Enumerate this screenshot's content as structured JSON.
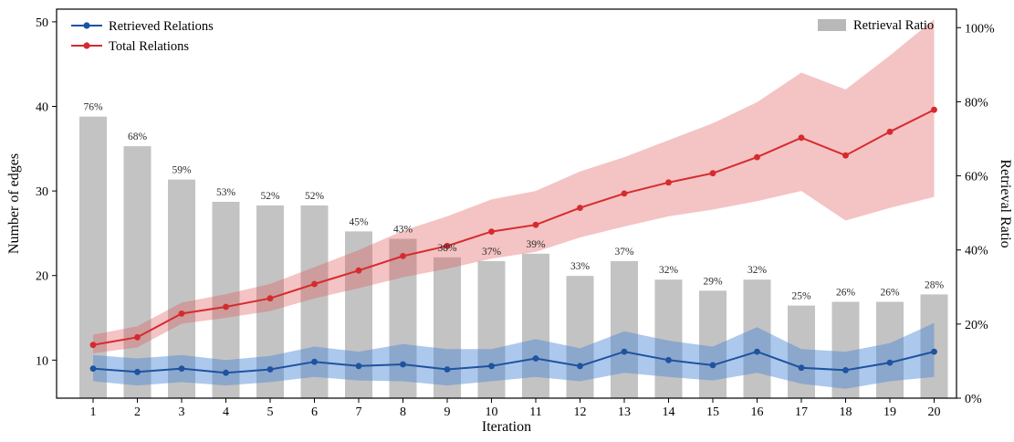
{
  "page": {
    "background": "#ffffff"
  },
  "chart_data": {
    "type": "bar+line",
    "title": "",
    "xlabel": "Iteration",
    "ylabel_left": "Number of edges",
    "ylabel_right": "Retrieval Ratio",
    "x": [
      1,
      2,
      3,
      4,
      5,
      6,
      7,
      8,
      9,
      10,
      11,
      12,
      13,
      14,
      15,
      16,
      17,
      18,
      19,
      20
    ],
    "left_ticks": [
      10,
      20,
      30,
      40,
      50
    ],
    "left_ylim": [
      5.5,
      51.5
    ],
    "right_ticks": [
      0,
      20,
      40,
      60,
      80,
      100
    ],
    "right_tick_labels": [
      "0%",
      "20%",
      "40%",
      "60%",
      "80%",
      "100%"
    ],
    "right_ylim": [
      0,
      105
    ],
    "grid": false,
    "legend_position": "top-left and top-right, no frame",
    "bars": {
      "name": "Retrieval Ratio",
      "axis": "right",
      "color": "#b8b8b8",
      "values_pct": [
        76,
        68,
        59,
        53,
        52,
        52,
        45,
        43,
        38,
        37,
        39,
        33,
        37,
        32,
        29,
        32,
        25,
        26,
        26,
        28
      ],
      "labels": [
        "76%",
        "68%",
        "59%",
        "53%",
        "52%",
        "52%",
        "45%",
        "43%",
        "38%",
        "37%",
        "39%",
        "33%",
        "37%",
        "32%",
        "29%",
        "32%",
        "25%",
        "26%",
        "26%",
        "28%"
      ],
      "label_color": "#2b2b2b"
    },
    "lines": [
      {
        "name": "Retrieved Relations",
        "axis": "left",
        "color": "#1d53a0",
        "band_color": "#4a86d8",
        "band_opacity": 0.45,
        "values": [
          9.0,
          8.6,
          9.0,
          8.5,
          8.9,
          9.8,
          9.3,
          9.5,
          8.9,
          9.3,
          10.2,
          9.3,
          11.0,
          10.0,
          9.4,
          11.0,
          9.1,
          8.8,
          9.7,
          11.0
        ],
        "band_upper": [
          10.6,
          10.2,
          10.6,
          10.0,
          10.5,
          11.6,
          11.0,
          11.9,
          11.3,
          11.3,
          12.5,
          11.4,
          13.4,
          12.3,
          11.6,
          13.9,
          11.3,
          11.0,
          12.0,
          14.4
        ],
        "band_lower": [
          7.5,
          7.0,
          7.4,
          7.0,
          7.4,
          8.0,
          7.6,
          7.5,
          7.0,
          7.5,
          8.0,
          7.5,
          8.5,
          8.0,
          7.6,
          8.5,
          7.2,
          6.6,
          7.5,
          8.0
        ]
      },
      {
        "name": "Total Relations",
        "axis": "left",
        "color": "#d62b2e",
        "band_color": "#e05252",
        "band_opacity": 0.35,
        "values": [
          11.8,
          12.7,
          15.5,
          16.3,
          17.3,
          19.0,
          20.6,
          22.3,
          23.5,
          25.2,
          26.0,
          28.0,
          29.7,
          31.0,
          32.1,
          34.0,
          36.3,
          34.2,
          37.0,
          39.6
        ],
        "band_upper": [
          13.0,
          14.0,
          16.8,
          17.8,
          19.0,
          21.0,
          23.0,
          25.3,
          27.0,
          29.0,
          30.0,
          32.3,
          34.0,
          36.0,
          38.0,
          40.5,
          44.0,
          42.0,
          46.0,
          50.3
        ],
        "band_lower": [
          10.8,
          11.5,
          14.3,
          15.0,
          15.8,
          17.3,
          18.5,
          19.8,
          20.8,
          22.0,
          22.8,
          24.5,
          25.8,
          27.0,
          27.8,
          28.8,
          30.0,
          26.5,
          28.0,
          29.3
        ]
      }
    ],
    "axis_color": "#000000",
    "tick_label_color": "#000000"
  }
}
